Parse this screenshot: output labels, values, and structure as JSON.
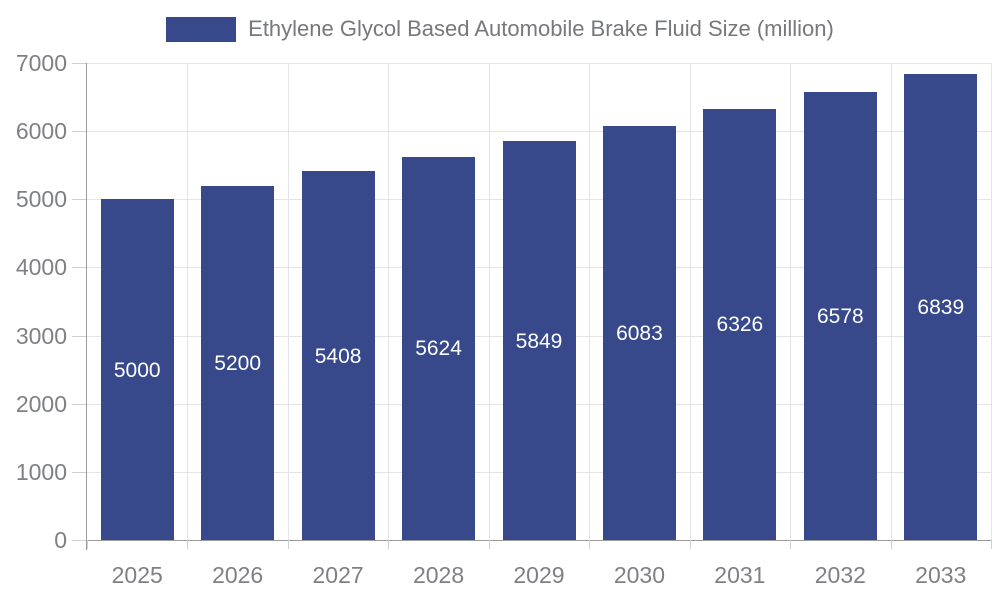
{
  "legend": {
    "label": "Ethylene Glycol Based Automobile Brake Fluid Size (million)"
  },
  "chart_data": {
    "type": "bar",
    "title": "Ethylene Glycol Based Automobile Brake Fluid Size (million)",
    "categories": [
      "2025",
      "2026",
      "2027",
      "2028",
      "2029",
      "2030",
      "2031",
      "2032",
      "2033"
    ],
    "values": [
      5000,
      5200,
      5408,
      5624,
      5849,
      6083,
      6326,
      6578,
      6839
    ],
    "data_labels": [
      "5000",
      "5200",
      "5408",
      "5624",
      "5849",
      "6083",
      "6326",
      "6578",
      "6839"
    ],
    "xlabel": "",
    "ylabel": "",
    "ylim": [
      0,
      7000
    ],
    "y_ticks": [
      0,
      1000,
      2000,
      3000,
      4000,
      5000,
      6000,
      7000
    ],
    "y_tick_labels": [
      "0",
      "1000",
      "2000",
      "3000",
      "4000",
      "5000",
      "6000",
      "7000"
    ],
    "grid": true,
    "legend_position": "top",
    "data_label_position": "inside-middle"
  },
  "colors": {
    "bar": "#38498B",
    "grid": "#E4E4E4",
    "axis": "#9B9B9B",
    "tick": "#CFCFCF",
    "text": "#7E8084",
    "data_label": "#FFFFFF",
    "background": "#FFFFFF"
  }
}
